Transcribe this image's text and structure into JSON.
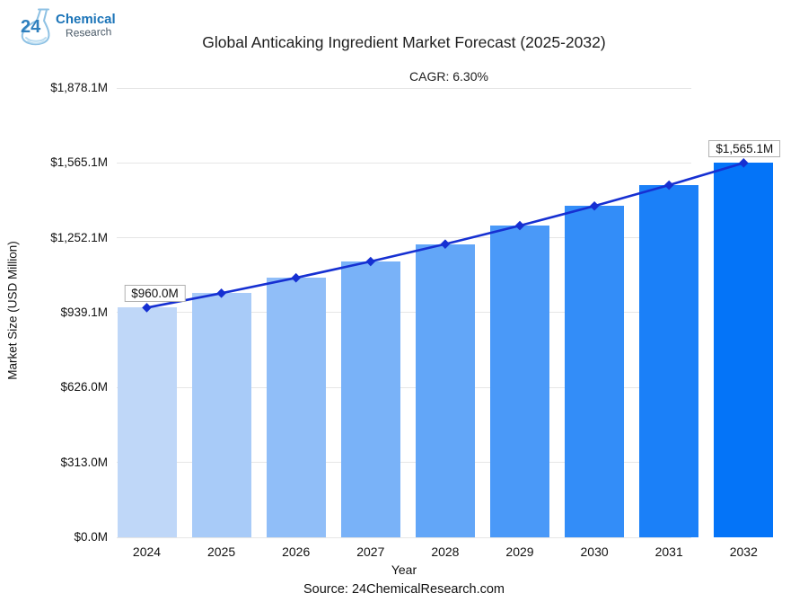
{
  "logo": {
    "number": "24",
    "name_top": "Chemical",
    "name_bottom": "Research"
  },
  "title": "Global Anticaking Ingredient Market Forecast (2025-2032)",
  "subtitle": "CAGR: 6.30%",
  "source": "Source: 24ChemicalResearch.com",
  "chart_data": {
    "type": "bar",
    "overlay": "line",
    "title": "Global Anticaking Ingredient Market Forecast (2025-2032)",
    "subtitle": "CAGR: 6.30%",
    "xlabel": "Year",
    "ylabel": "Market Size (USD Million)",
    "categories": [
      "2024",
      "2025",
      "2026",
      "2027",
      "2028",
      "2029",
      "2030",
      "2031",
      "2032"
    ],
    "values": [
      960.0,
      1020.5,
      1084.8,
      1153.1,
      1225.8,
      1303.0,
      1385.1,
      1472.3,
      1565.1
    ],
    "bar_colors": [
      "#BFD7F8",
      "#A8CBF8",
      "#90BEF8",
      "#79B2F8",
      "#62A6F8",
      "#4A99F8",
      "#338DF8",
      "#1B80F8",
      "#0474F8"
    ],
    "line_color": "#1630D2",
    "marker": "diamond",
    "grid": true,
    "grid_color": "#E6E6E6",
    "legend": "none",
    "ylim": [
      0,
      1878.1
    ],
    "y_tick_values": [
      0,
      313.0,
      626.0,
      939.1,
      1252.1,
      1565.1,
      1878.1
    ],
    "y_tick_labels": [
      "$0.0M",
      "$313.0M",
      "$626.0M",
      "$939.1M",
      "$1,252.1M",
      "$1,565.1M",
      "$1,878.1M"
    ],
    "annotations": [
      {
        "index": 0,
        "text": "$960.0M"
      },
      {
        "index": 8,
        "text": "$1,565.1M"
      }
    ]
  }
}
